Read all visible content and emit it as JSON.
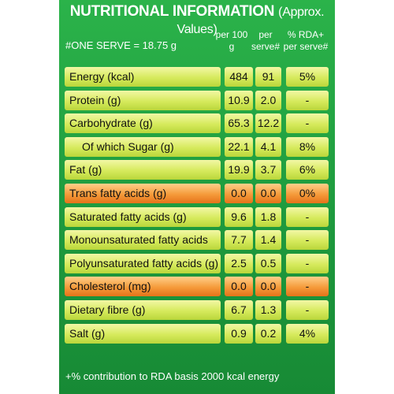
{
  "title": {
    "main": "NUTRITIONAL INFORMATION",
    "sub": "(Approx. Values)"
  },
  "header": {
    "serve": "#ONE SERVE = 18.75 g",
    "col1": "per 100 g",
    "col2": "per serve#",
    "col3": "% RDA+ per serve#"
  },
  "rows": [
    {
      "name": "Energy (kcal)",
      "per100": "484",
      "perServe": "91",
      "rda": "5%",
      "highlight": "green"
    },
    {
      "name": "Protein (g)",
      "per100": "10.9",
      "perServe": "2.0",
      "rda": "-",
      "highlight": "green"
    },
    {
      "name": "Carbohydrate (g)",
      "per100": "65.3",
      "perServe": "12.2",
      "rda": "-",
      "highlight": "green"
    },
    {
      "name": "Of which Sugar (g)",
      "per100": "22.1",
      "perServe": "4.1",
      "rda": "8%",
      "highlight": "green"
    },
    {
      "name": "Fat (g)",
      "per100": "19.9",
      "perServe": "3.7",
      "rda": "6%",
      "highlight": "green"
    },
    {
      "name": "Trans fatty acids (g)",
      "per100": "0.0",
      "perServe": "0.0",
      "rda": "0%",
      "highlight": "orange"
    },
    {
      "name": "Saturated fatty acids (g)",
      "per100": "9.6",
      "perServe": "1.8",
      "rda": "-",
      "highlight": "green"
    },
    {
      "name": "Monounsaturated fatty acids (g)",
      "per100": "7.7",
      "perServe": "1.4",
      "rda": "-",
      "highlight": "green"
    },
    {
      "name": "Polyunsaturated fatty acids (g)",
      "per100": "2.5",
      "perServe": "0.5",
      "rda": "-",
      "highlight": "green"
    },
    {
      "name": "Cholesterol (mg)",
      "per100": "0.0",
      "perServe": "0.0",
      "rda": "-",
      "highlight": "orange"
    },
    {
      "name": "Dietary fibre (g)",
      "per100": "6.7",
      "perServe": "1.3",
      "rda": "-",
      "highlight": "green"
    },
    {
      "name": "Salt (g)",
      "per100": "0.9",
      "perServe": "0.2",
      "rda": "4%",
      "highlight": "green"
    }
  ],
  "footer": "+% contribution to RDA basis 2000 kcal energy",
  "colors": {
    "panel": "#1e9a3e",
    "cell_green": "#d6ea5c",
    "cell_orange": "#f59a3a"
  }
}
